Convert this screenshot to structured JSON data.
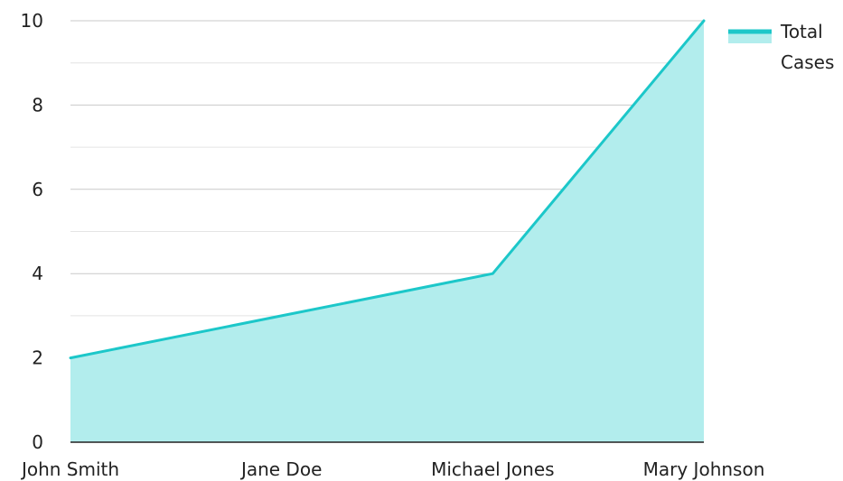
{
  "chart_data": {
    "type": "area",
    "categories": [
      "John Smith",
      "Jane Doe",
      "Michael Jones",
      "Mary Johnson"
    ],
    "series": [
      {
        "name": "Total Cases",
        "legend_lines": [
          "Total",
          "Cases"
        ],
        "values": [
          2,
          3,
          4,
          10
        ],
        "line_color": "#1CC7C9",
        "fill_color": "#B2EDED"
      }
    ],
    "ylim": [
      0,
      10
    ],
    "y_ticks": [
      0,
      2,
      4,
      6,
      8,
      10
    ],
    "grid": true,
    "legend_position": "top-right"
  }
}
